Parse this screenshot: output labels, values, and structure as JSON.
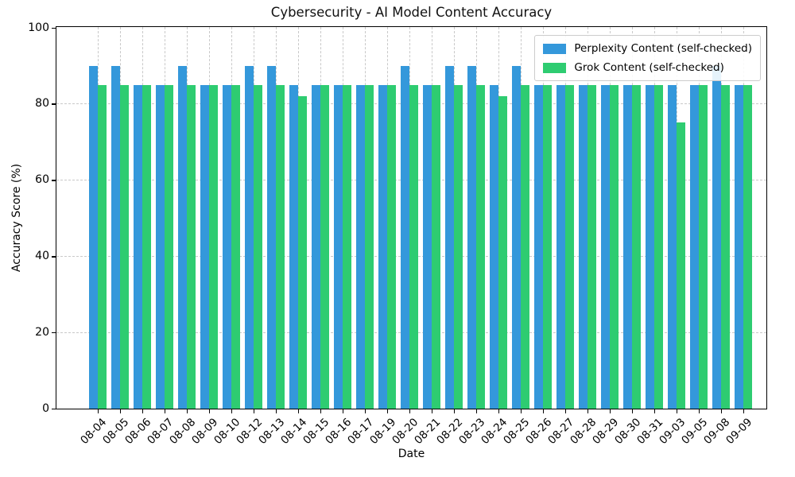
{
  "chart_data": {
    "type": "bar",
    "title": "Cybersecurity - AI Model Content Accuracy",
    "xlabel": "Date",
    "ylabel": "Accuracy Score (%)",
    "ylim": [
      0,
      100
    ],
    "yticks": [
      0,
      20,
      40,
      60,
      80,
      100
    ],
    "grid": true,
    "legend_position": "upper right",
    "categories": [
      "08-04",
      "08-05",
      "08-06",
      "08-07",
      "08-08",
      "08-09",
      "08-10",
      "08-12",
      "08-13",
      "08-14",
      "08-15",
      "08-16",
      "08-17",
      "08-19",
      "08-20",
      "08-21",
      "08-22",
      "08-23",
      "08-24",
      "08-25",
      "08-26",
      "08-27",
      "08-28",
      "08-29",
      "08-30",
      "08-31",
      "09-03",
      "09-05",
      "09-08",
      "09-09"
    ],
    "series": [
      {
        "name": "Perplexity Content (self-checked)",
        "color": "#3498db",
        "values": [
          90,
          90,
          85,
          85,
          90,
          85,
          85,
          90,
          90,
          85,
          85,
          85,
          85,
          85,
          90,
          85,
          90,
          90,
          85,
          90,
          85,
          85,
          85,
          85,
          85,
          85,
          85,
          85,
          90,
          85
        ]
      },
      {
        "name": "Grok Content (self-checked)",
        "color": "#2ecc71",
        "values": [
          85,
          85,
          85,
          85,
          85,
          85,
          85,
          85,
          85,
          82,
          85,
          85,
          85,
          85,
          85,
          85,
          85,
          85,
          82,
          85,
          85,
          85,
          85,
          85,
          85,
          85,
          75,
          85,
          85,
          85
        ]
      }
    ],
    "gridline_color": "#c9c9c9",
    "spine_color": "#000000"
  }
}
